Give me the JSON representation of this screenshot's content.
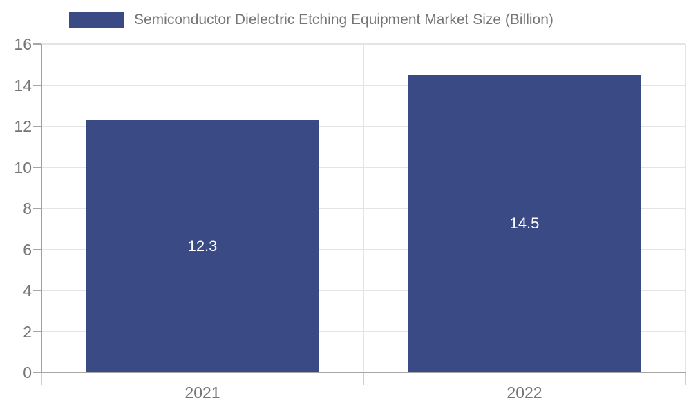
{
  "legend": {
    "label": "Semiconductor Dielectric Etching Equipment Market Size (Billion)"
  },
  "chart_data": {
    "type": "bar",
    "title": "Semiconductor Dielectric Etching Equipment Market Size (Billion)",
    "categories": [
      "2021",
      "2022"
    ],
    "values": [
      12.3,
      14.5
    ],
    "data_labels": [
      "12.3",
      "14.5"
    ],
    "xlabel": "",
    "ylabel": "",
    "ylim": [
      0,
      16
    ],
    "y_ticks": [
      0,
      2,
      4,
      6,
      8,
      10,
      12,
      14,
      16
    ],
    "grid": true,
    "legend_position": "top-left",
    "data_label_position": "center-of-bar"
  },
  "colors": {
    "bar": "#3A4A85",
    "grid_line": "#E4E4E4",
    "axis_line": "#A6A6A6",
    "tick": "#A6A6A6",
    "axis_text": "#757575",
    "data_label_text": "#FFFFFF",
    "background": "#FFFFFF"
  }
}
